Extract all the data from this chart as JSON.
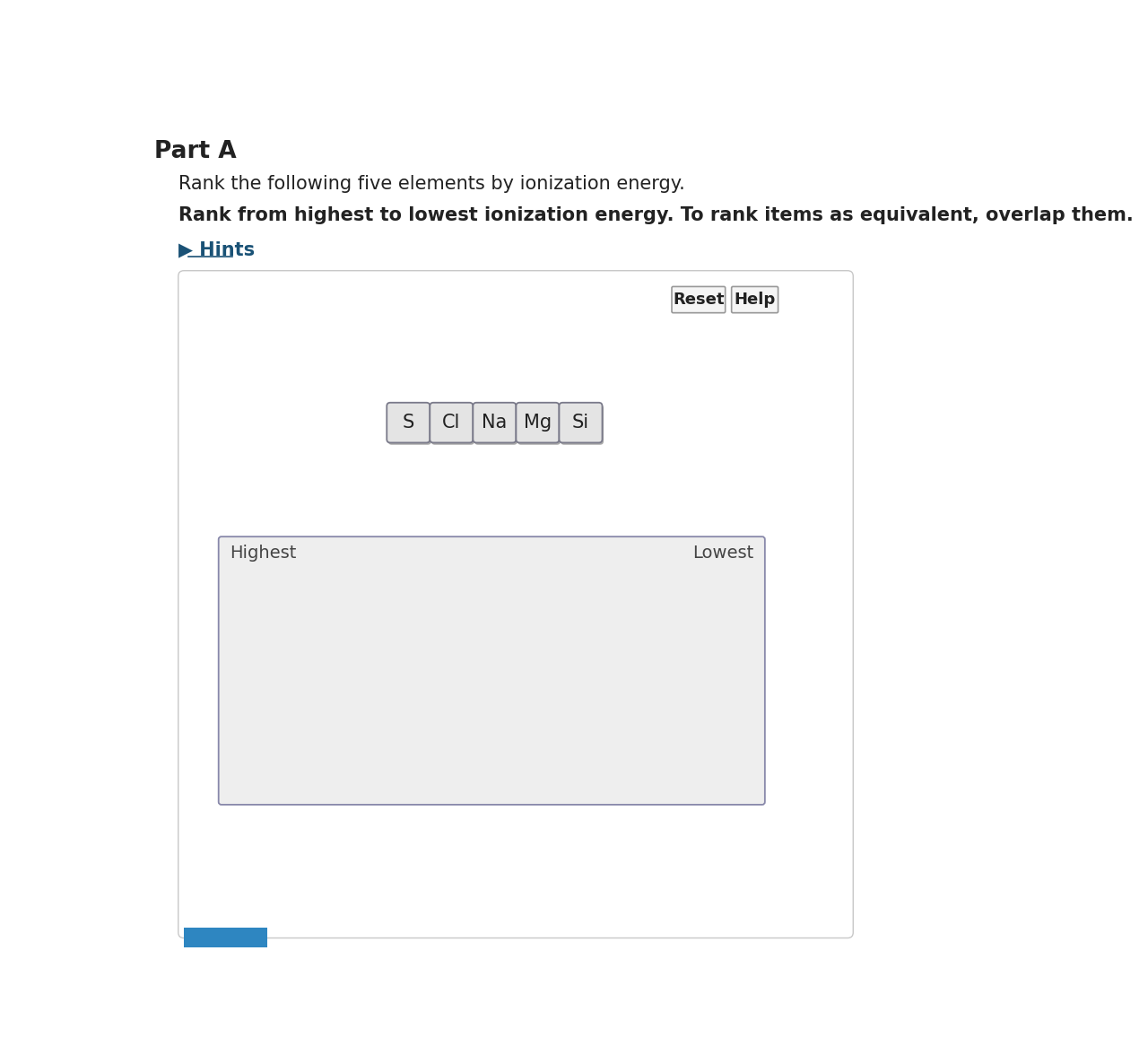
{
  "title": "Part A",
  "subtitle": "Rank the following five elements by ionization energy.",
  "bold_text": "Rank from highest to lowest ionization energy. To rank items as equivalent, overlap them.",
  "hints_text": "▶ Hints",
  "elements": [
    "S",
    "Cl",
    "Na",
    "Mg",
    "Si"
  ],
  "reset_text": "Reset",
  "help_text": "Help",
  "highest_text": "Highest",
  "lowest_text": "Lowest",
  "bg_color": "#ffffff",
  "outer_box_edge": "#c8c8c8",
  "outer_box_face": "#ffffff",
  "inner_box_edge": "#8888aa",
  "inner_box_face": "#eeeeee",
  "element_box_face": "#e4e4e4",
  "element_box_edge": "#7a7a8a",
  "element_shadow": "#aaaaaa",
  "button_face": "#f5f5f5",
  "button_edge": "#999999",
  "hints_color": "#1a5276",
  "text_color": "#222222",
  "label_color": "#444444",
  "blue_btn_color": "#2e86c1",
  "title_fontsize": 19,
  "subtitle_fontsize": 15,
  "bold_fontsize": 15,
  "hints_fontsize": 15,
  "element_fontsize": 15,
  "button_fontsize": 13,
  "label_fontsize": 14
}
